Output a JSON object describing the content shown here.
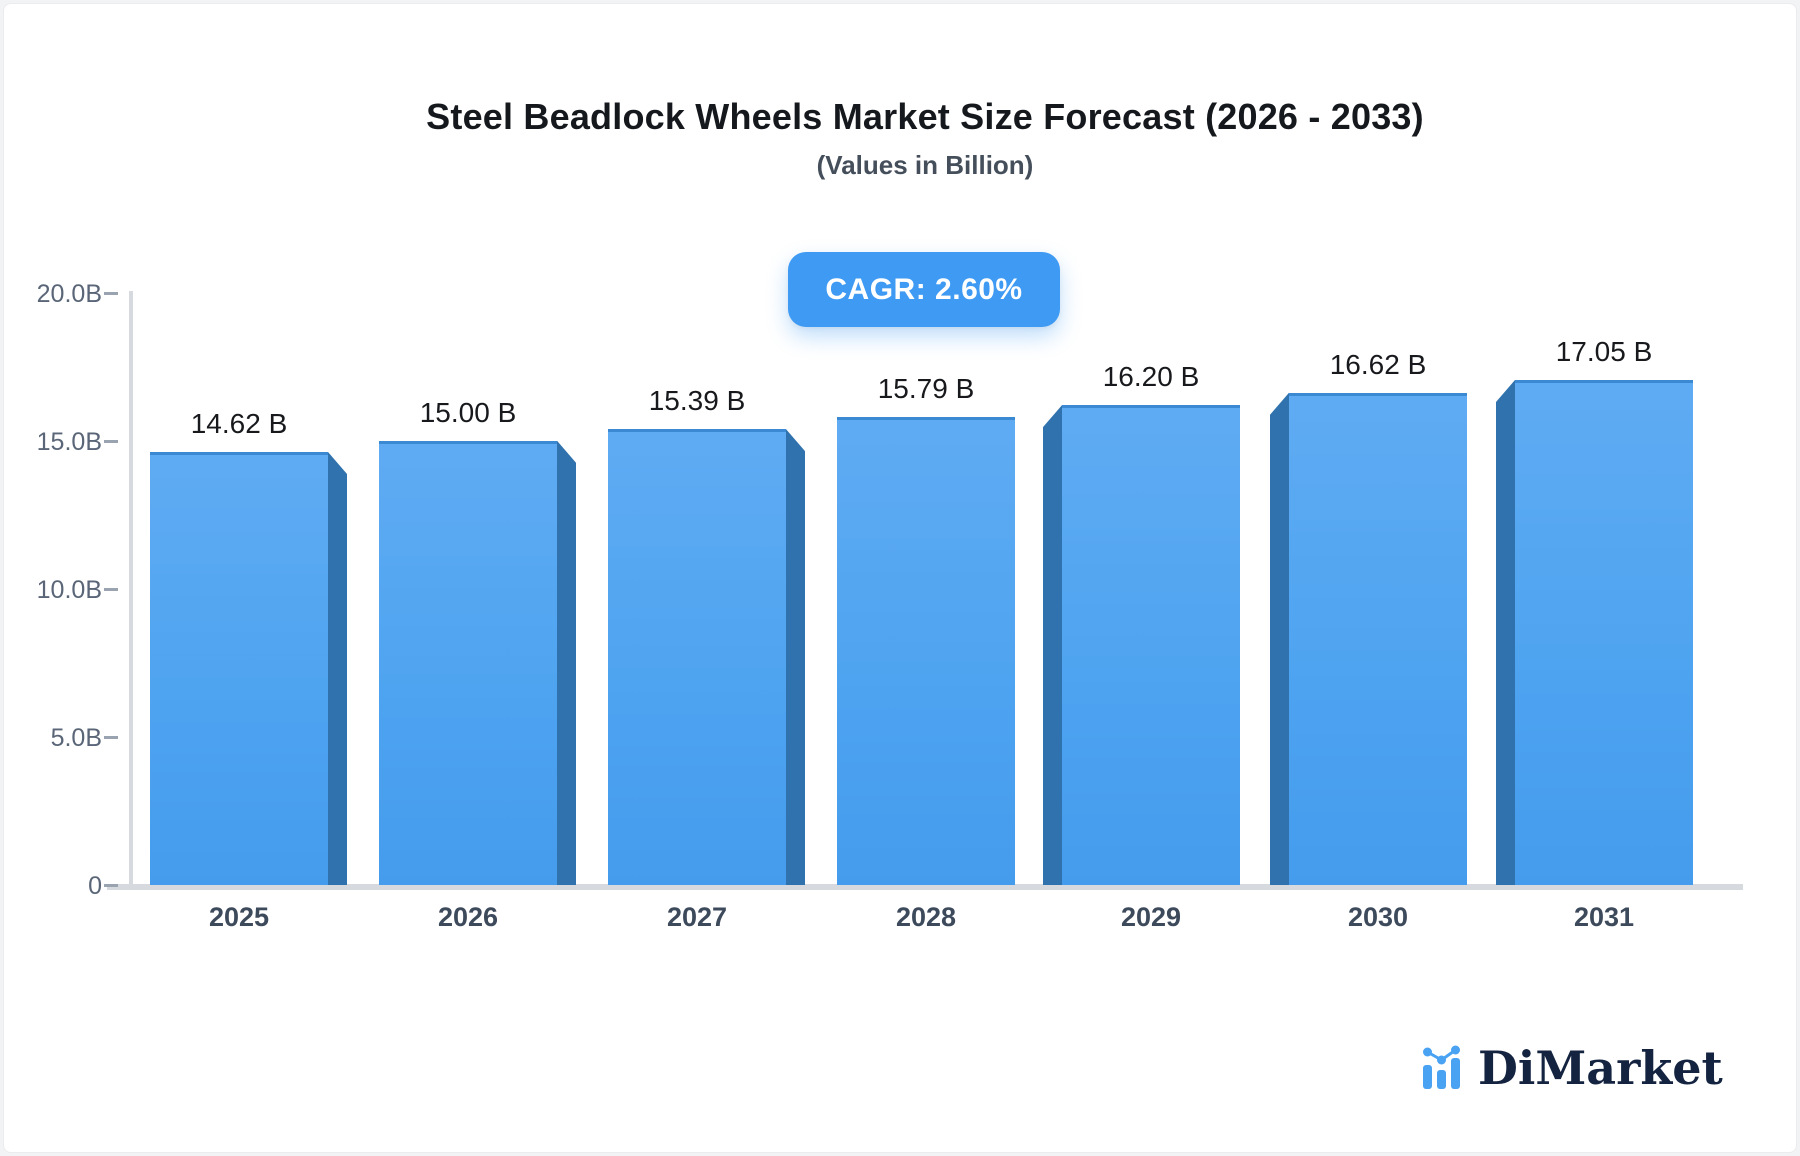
{
  "header": {
    "title": "Steel Beadlock Wheels Market Size Forecast (2026 - 2033)",
    "subtitle": "(Values in Billion)",
    "cagr_badge": "CAGR: 2.60%"
  },
  "brand": {
    "name": "DiMarket"
  },
  "colors": {
    "badge_bg": "#3e9af3",
    "bar_face": "#4da3f0",
    "bar_face_light": "#5fabf3",
    "bar_side": "#2f72ad",
    "bar_top_edge": "#3c89d3",
    "axis_line": "#d6d9de",
    "tick_text": "#5a6678",
    "year_text": "#3d4a5b",
    "value_text": "#17191c",
    "brand_navy": "#132340",
    "brand_blue": "#4aa2f3"
  },
  "chart_data": {
    "type": "bar",
    "title": "Steel Beadlock Wheels Market Size Forecast (2026 - 2033)",
    "subtitle": "(Values in Billion)",
    "cagr_label": "CAGR: 2.60%",
    "cagr_percent": 2.6,
    "unit": "Billion",
    "categories": [
      "2025",
      "2026",
      "2027",
      "2028",
      "2029",
      "2030",
      "2031"
    ],
    "values": [
      14.62,
      15.0,
      15.39,
      15.79,
      16.2,
      16.62,
      17.05
    ],
    "bar_labels": [
      "14.62 B",
      "15.00 B",
      "15.39 B",
      "15.79 B",
      "16.20 B",
      "16.62 B",
      "17.05 B"
    ],
    "ylim": [
      0,
      20
    ],
    "yticks": [
      {
        "label": "20.0B",
        "value": 20
      },
      {
        "label": "15.0B",
        "value": 15
      },
      {
        "label": "10.0B",
        "value": 10
      },
      {
        "label": "5.0B",
        "value": 5
      },
      {
        "label": "0",
        "value": 0
      }
    ],
    "grid": false,
    "legend": false,
    "bar_style": "3d-beveled-blue"
  }
}
